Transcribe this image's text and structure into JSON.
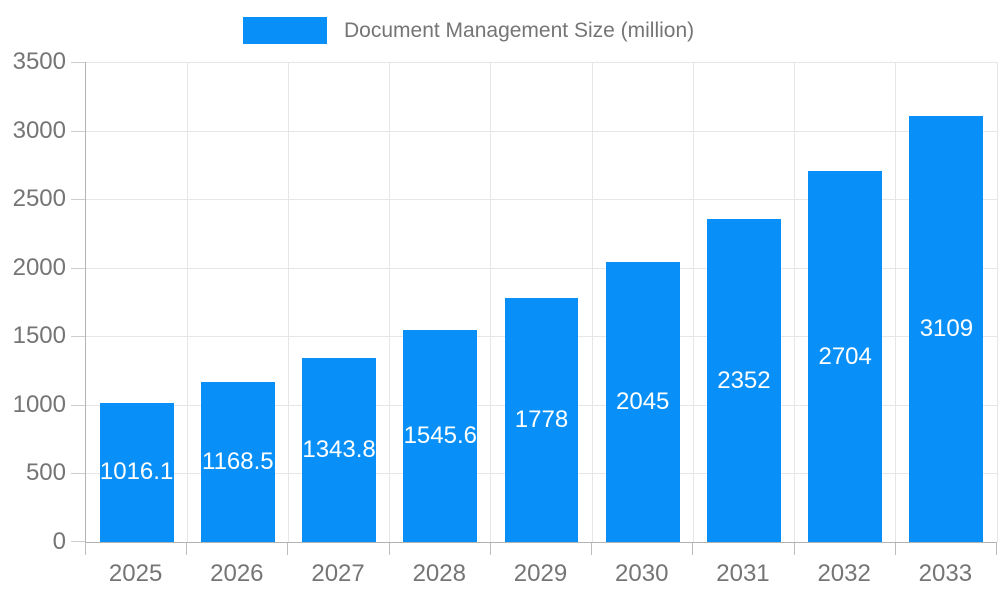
{
  "legend": {
    "label": "Document Management Size (million)"
  },
  "colors": {
    "bar": "#0890f8",
    "bar_label": "#ffffff",
    "axis_text": "#757575",
    "grid_line": "#e6e6e6",
    "axis_line": "#b3b3b3",
    "tick": "#cccccc",
    "background": "#ffffff"
  },
  "chart_data": {
    "type": "bar",
    "title": "Document Management Size (million)",
    "series_name": "Document Management Size (million)",
    "categories": [
      "2025",
      "2026",
      "2027",
      "2028",
      "2029",
      "2030",
      "2031",
      "2032",
      "2033"
    ],
    "values": [
      1016.1,
      1168.5,
      1343.8,
      1545.6,
      1778,
      2045,
      2352,
      2704,
      3109
    ],
    "bar_labels": [
      "1016.1",
      "1168.5",
      "1343.8",
      "1545.6",
      "1778",
      "2045",
      "2352",
      "2704",
      "3109"
    ],
    "xlabel": "",
    "ylabel": "",
    "ylim": [
      0,
      3500
    ],
    "yticks": [
      0,
      500,
      1000,
      1500,
      2000,
      2500,
      3000,
      3500
    ],
    "grid": true,
    "legend_position": "top",
    "bar_label_position": "inside-center"
  }
}
